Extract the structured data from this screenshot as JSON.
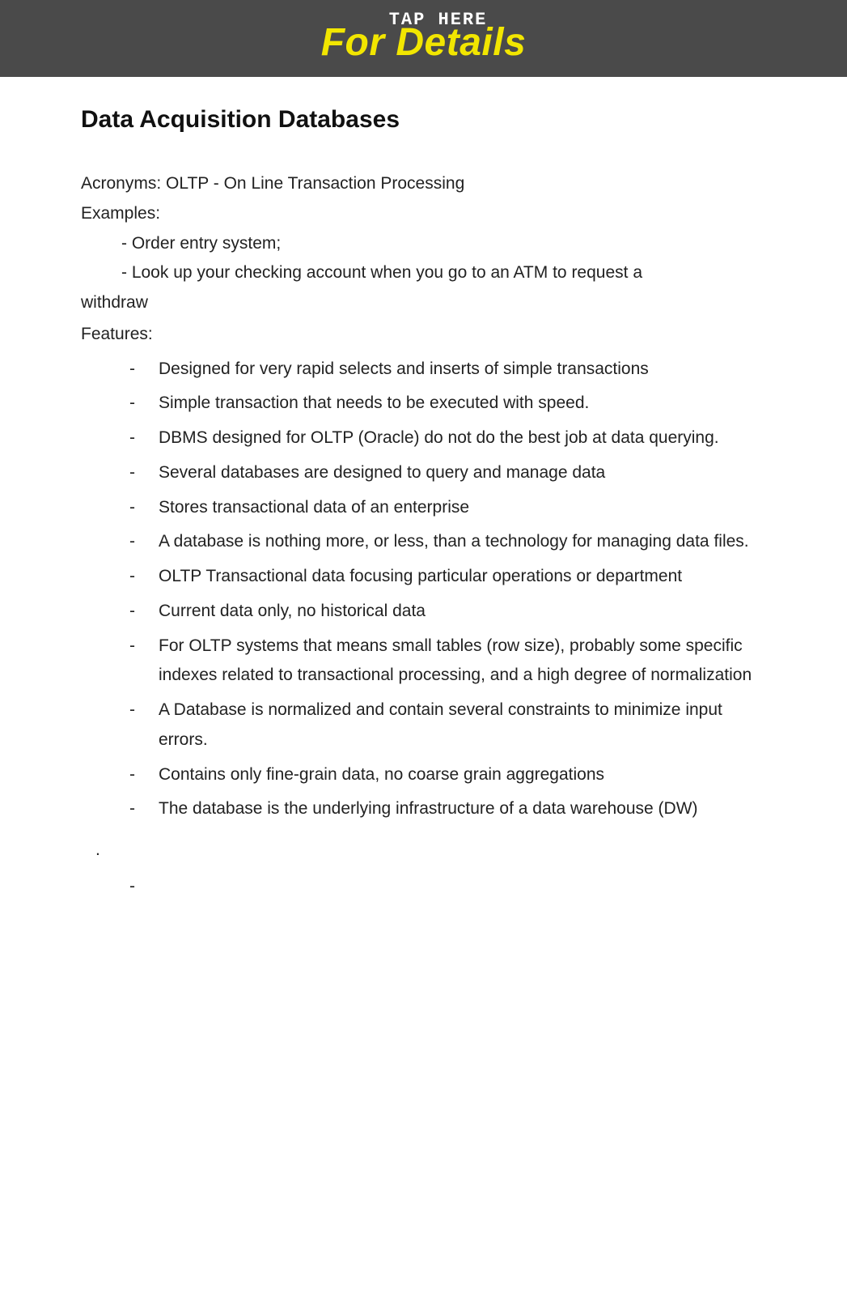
{
  "banner": {
    "top_text": "TAP HERE",
    "bottom_text": "For Details",
    "background_color": "#4a4a4a",
    "top_text_color": "#ffffff",
    "bottom_text_color": "#f2e600",
    "top_font_family": "Courier New",
    "bottom_font_family": "Arial",
    "top_fontsize": 22,
    "bottom_fontsize": 48
  },
  "document": {
    "title": "Data Acquisition Databases",
    "title_fontsize": 30,
    "body_fontsize": 21,
    "text_color": "#222222",
    "background_color": "#ffffff",
    "acronym_line": "Acronyms: OLTP - On Line Transaction Processing",
    "examples_label": "Examples:",
    "examples": [
      "- Order entry system;",
      "- Look up your checking account when you go to an ATM to request a"
    ],
    "examples_continuation": "withdraw",
    "features_label": "Features:",
    "features": [
      "Designed for very rapid selects and inserts of simple transactions",
      "Simple transaction that needs to be executed with speed.",
      "DBMS designed for OLTP (Oracle) do not do the best job at data querying.",
      "Several databases are designed to query and manage data",
      "Stores transactional data of an enterprise",
      "A database is nothing more, or less, than a technology for managing data files.",
      "OLTP Transactional data focusing particular operations or department",
      "Current data only, no historical data",
      "For OLTP systems that means small tables (row size), probably some specific indexes related to transactional processing, and a high degree of normalization",
      "A Database is normalized and contain several constraints to minimize input errors.",
      "Contains only fine-grain data, no coarse grain aggregations",
      "The database is the underlying infrastructure of a data warehouse (DW)"
    ],
    "trailing_dot": ".",
    "trailing_dash": "-"
  }
}
